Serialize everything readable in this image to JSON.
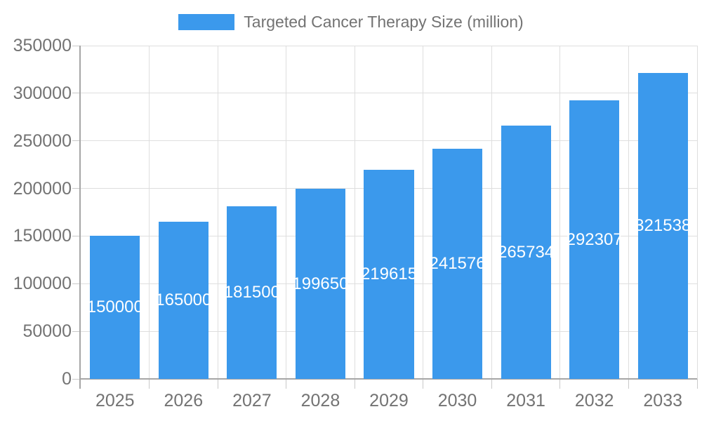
{
  "legend": {
    "label": "Targeted Cancer Therapy Size (million)"
  },
  "chart_data": {
    "type": "bar",
    "title": "Targeted Cancer Therapy Size (million)",
    "xlabel": "",
    "ylabel": "",
    "categories": [
      "2025",
      "2026",
      "2027",
      "2028",
      "2029",
      "2030",
      "2031",
      "2032",
      "2033"
    ],
    "series": [
      {
        "name": "Targeted Cancer Therapy Size (million)",
        "values": [
          150000,
          165000,
          181500,
          199650,
          219615,
          241576,
          265734,
          292307,
          321538
        ]
      }
    ],
    "value_labels": [
      "150000",
      "165000",
      "181500",
      "199650",
      "219615",
      "241576",
      "265734",
      "292307",
      "321538"
    ],
    "ylim": [
      0,
      350000
    ],
    "yticks": [
      0,
      50000,
      100000,
      150000,
      200000,
      250000,
      300000,
      350000
    ],
    "ytick_labels": [
      "0",
      "50000",
      "100000",
      "150000",
      "200000",
      "250000",
      "300000",
      "350000"
    ],
    "grid": true,
    "legend_position": "top",
    "colors": {
      "bar": "#3B99EC",
      "value_label": "#FFFFFF",
      "axis_label": "#737373",
      "legend_label": "#737373",
      "gridline": "#DEDEDE",
      "tick": "#C9C9C9",
      "axis_line": "#A6A6A6",
      "background": "#FFFFFF"
    }
  }
}
